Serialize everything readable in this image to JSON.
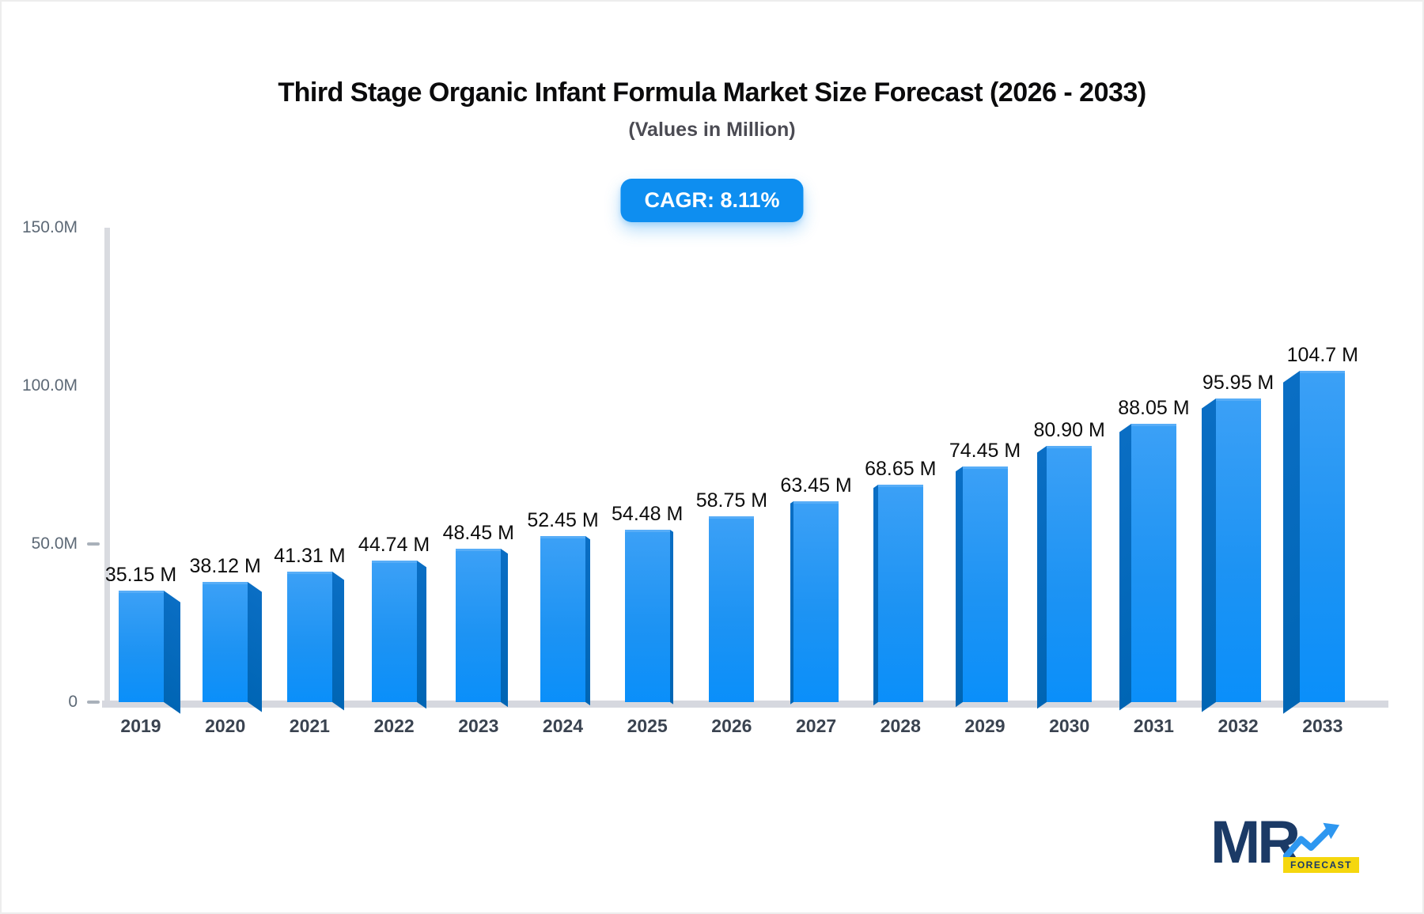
{
  "header": {
    "title": "Third Stage Organic Infant Formula Market Size Forecast (2026 - 2033)",
    "subtitle": "(Values in Million)",
    "cagr_label": "CAGR: 8.11%",
    "cagr_badge_color": "#0e8ef0"
  },
  "chart_data": {
    "type": "bar",
    "title": "Third Stage Organic Infant Formula Market Size Forecast (2026 - 2033)",
    "subtitle": "(Values in Million)",
    "unit": "Million",
    "categories": [
      "2019",
      "2020",
      "2021",
      "2022",
      "2023",
      "2024",
      "2025",
      "2026",
      "2027",
      "2028",
      "2029",
      "2030",
      "2031",
      "2032",
      "2033"
    ],
    "values": [
      35.15,
      38.12,
      41.31,
      44.74,
      48.45,
      52.45,
      54.48,
      58.75,
      63.45,
      68.65,
      74.45,
      80.9,
      88.05,
      95.95,
      104.7
    ],
    "value_labels": [
      "35.15 M",
      "38.12 M",
      "41.31 M",
      "44.74 M",
      "48.45 M",
      "52.45 M",
      "54.48 M",
      "58.75 M",
      "63.45 M",
      "68.65 M",
      "74.45 M",
      "80.90 M",
      "88.05 M",
      "95.95 M",
      "104.7 M"
    ],
    "xlabel": "",
    "ylabel": "",
    "ylim": [
      0,
      150
    ],
    "y_ticks": [
      {
        "label": "150.0M",
        "value": 150,
        "dash": false
      },
      {
        "label": "100.0M",
        "value": 100,
        "dash": false
      },
      {
        "label": "50.0M",
        "value": 50,
        "dash": true
      },
      {
        "label": "0",
        "value": 0,
        "dash": true
      }
    ],
    "grid": false,
    "legend": "none",
    "bar_face_color_top": "#3ba0f6",
    "bar_face_color_bottom": "#0a8ffa",
    "bar_side_color": "#0a6ec4",
    "style": "3d-perspective-center"
  },
  "logo": {
    "text": "MR",
    "badge": "FORECAST",
    "arrow_icon": "trend-up-arrow",
    "text_color": "#1b3a66",
    "arrow_color": "#2e97f0",
    "badge_color": "#f5d70e"
  }
}
